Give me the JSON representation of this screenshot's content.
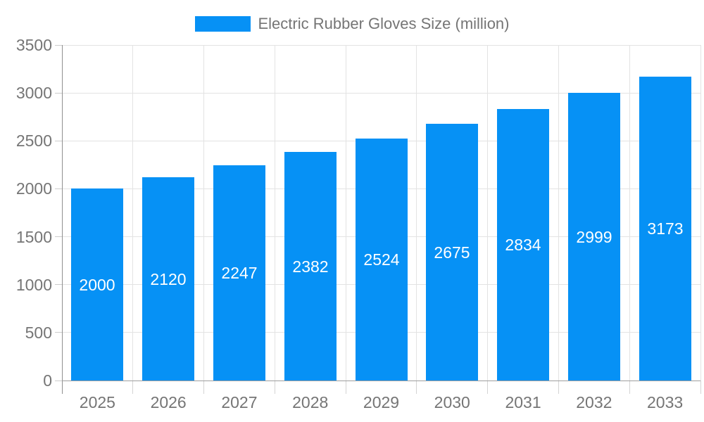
{
  "legend": {
    "label": "Electric Rubber Gloves Size (million)"
  },
  "chart_data": {
    "type": "bar",
    "title": "Electric Rubber Gloves Size (million)",
    "series_name": "Electric Rubber Gloves Size (million)",
    "categories": [
      "2025",
      "2026",
      "2027",
      "2028",
      "2029",
      "2030",
      "2031",
      "2032",
      "2033"
    ],
    "values": [
      2000,
      2120,
      2247,
      2382,
      2524,
      2675,
      2834,
      2999,
      3173
    ],
    "xlabel": "",
    "ylabel": "",
    "ylim": [
      0,
      3500
    ],
    "yticks": [
      0,
      500,
      1000,
      1500,
      2000,
      2500,
      3000,
      3500
    ],
    "grid": true,
    "legend_position": "top",
    "bar_color": "#0691f5",
    "value_label_color": "#ffffff",
    "axis_label_color": "#757575"
  }
}
